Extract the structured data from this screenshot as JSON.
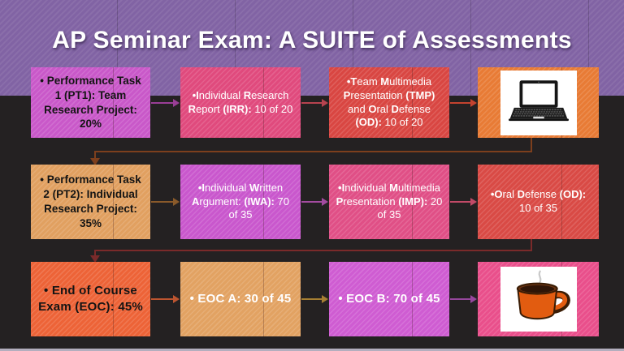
{
  "slide": {
    "title": "AP Seminar Exam: A SUITE of Assessments",
    "background_color": "#242122",
    "header_color": "#8163a4",
    "bottom_strip_color": "#b3aebe"
  },
  "boxes": [
    {
      "name": "performance-task-1",
      "bg": "#c958c9",
      "text_color": "#141414",
      "segments": [
        {
          "t": "• Performance Task 1 (PT1): Team Research Project: 20%",
          "b": true
        }
      ]
    },
    {
      "name": "individual-research-report",
      "bg": "#e04a7d",
      "text_color": "#ffffff",
      "segments": [
        {
          "t": "•",
          "b": true
        },
        {
          "t": "I",
          "b": true
        },
        {
          "t": "ndividual ",
          "b": false
        },
        {
          "t": "R",
          "b": true
        },
        {
          "t": "esearch ",
          "b": false
        },
        {
          "t": "R",
          "b": true
        },
        {
          "t": "eport ",
          "b": false
        },
        {
          "t": "(IRR):",
          "b": true
        },
        {
          "t": " 10 of 20",
          "b": false
        }
      ]
    },
    {
      "name": "team-multimedia-presentation-oral-defense",
      "bg": "#d94642",
      "text_color": "#ffffff",
      "segments": [
        {
          "t": "•",
          "b": true
        },
        {
          "t": "T",
          "b": true
        },
        {
          "t": "eam ",
          "b": false
        },
        {
          "t": "M",
          "b": true
        },
        {
          "t": "ultimedia ",
          "b": false
        },
        {
          "t": "P",
          "b": true
        },
        {
          "t": "resentation ",
          "b": false
        },
        {
          "t": "(TMP)",
          "b": true
        },
        {
          "t": " and ",
          "b": false
        },
        {
          "t": "O",
          "b": true
        },
        {
          "t": "ral ",
          "b": false
        },
        {
          "t": "D",
          "b": true
        },
        {
          "t": "efense ",
          "b": false
        },
        {
          "t": "(OD):",
          "b": true
        },
        {
          "t": " 10 of 20",
          "b": false
        }
      ]
    },
    {
      "name": "laptop-image-box",
      "bg": "#e87b35",
      "image": "laptop"
    },
    {
      "name": "performance-task-2",
      "bg": "#e1a060",
      "text_color": "#141414",
      "segments": [
        {
          "t": "• Performance Task 2 (PT2): Individual Research Project: 35%",
          "b": true
        }
      ]
    },
    {
      "name": "individual-written-argument",
      "bg": "#c957cd",
      "text_color": "#ffffff",
      "segments": [
        {
          "t": "•",
          "b": true
        },
        {
          "t": "I",
          "b": true
        },
        {
          "t": "ndividual ",
          "b": false
        },
        {
          "t": "W",
          "b": true
        },
        {
          "t": "ritten ",
          "b": false
        },
        {
          "t": "A",
          "b": true
        },
        {
          "t": "rgument: ",
          "b": false
        },
        {
          "t": "(IWA):",
          "b": true
        },
        {
          "t": " 70 of 35",
          "b": false
        }
      ]
    },
    {
      "name": "individual-multimedia-presentation",
      "bg": "#e04f86",
      "text_color": "#ffffff",
      "segments": [
        {
          "t": "•",
          "b": true
        },
        {
          "t": "I",
          "b": true
        },
        {
          "t": "ndividual ",
          "b": false
        },
        {
          "t": "M",
          "b": true
        },
        {
          "t": "ultimedia ",
          "b": false
        },
        {
          "t": "P",
          "b": true
        },
        {
          "t": "resentation ",
          "b": false
        },
        {
          "t": "(IMP):",
          "b": true
        },
        {
          "t": " 20 of 35",
          "b": false
        }
      ]
    },
    {
      "name": "oral-defense",
      "bg": "#d94a45",
      "text_color": "#ffffff",
      "segments": [
        {
          "t": "•",
          "b": true
        },
        {
          "t": "O",
          "b": true
        },
        {
          "t": "ral ",
          "b": false
        },
        {
          "t": "D",
          "b": true
        },
        {
          "t": "efense ",
          "b": false
        },
        {
          "t": "(OD):",
          "b": true
        },
        {
          "t": " 10 of 35",
          "b": false
        }
      ]
    },
    {
      "name": "end-of-course-exam",
      "bg": "#ed6337",
      "text_color": "#141414",
      "segments": [
        {
          "t": "• End of Course Exam (EOC): 45%",
          "b": true
        }
      ]
    },
    {
      "name": "eoc-a",
      "bg": "#e2a262",
      "text_color": "#ffffff",
      "segments": [
        {
          "t": "• EOC A: 30 of 45",
          "b": true
        }
      ]
    },
    {
      "name": "eoc-b",
      "bg": "#cf5cd2",
      "text_color": "#ffffff",
      "segments": [
        {
          "t": "• EOC B: 70 of 45",
          "b": true
        }
      ]
    },
    {
      "name": "coffee-cup-image-box",
      "bg": "#e94f8b",
      "image": "coffee-cup"
    }
  ],
  "arrows": [
    {
      "from": "performance-task-1",
      "to": "individual-research-report",
      "color": "#9a3e97"
    },
    {
      "from": "individual-research-report",
      "to": "team-multimedia-presentation-oral-defense",
      "color": "#b8434f"
    },
    {
      "from": "team-multimedia-presentation-oral-defense",
      "to": "laptop-image-box",
      "color": "#c4432f"
    },
    {
      "from": "performance-task-2",
      "to": "individual-written-argument",
      "color": "#8a5a2a"
    },
    {
      "from": "individual-written-argument",
      "to": "individual-multimedia-presentation",
      "color": "#a34ba0"
    },
    {
      "from": "individual-multimedia-presentation",
      "to": "oral-defense",
      "color": "#c14a67"
    },
    {
      "from": "end-of-course-exam",
      "to": "eoc-a",
      "color": "#bd5530"
    },
    {
      "from": "eoc-a",
      "to": "eoc-b",
      "color": "#a67f33"
    },
    {
      "from": "eoc-b",
      "to": "coffee-cup-image-box",
      "color": "#96479d"
    }
  ],
  "connectors": [
    {
      "from": "laptop-image-box",
      "to": "performance-task-2",
      "color": "#7d3f1d"
    },
    {
      "from": "oral-defense",
      "to": "end-of-course-exam",
      "color": "#7a2a2a"
    }
  ]
}
